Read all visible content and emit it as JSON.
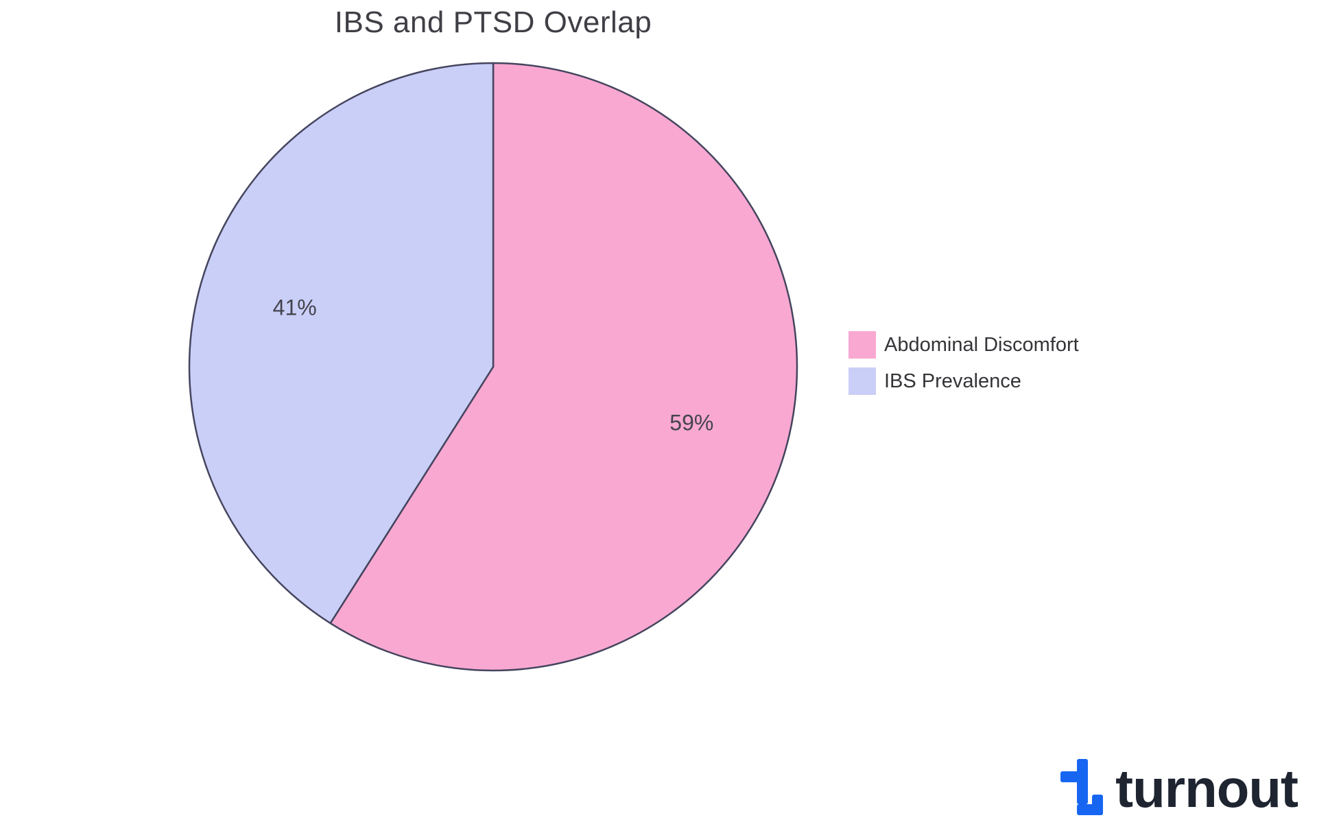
{
  "page": {
    "background": "#ffffff"
  },
  "chart_data": {
    "type": "pie",
    "title": "IBS and PTSD Overlap",
    "slices": [
      {
        "label": "Abdominal Discomfort",
        "value": 59,
        "pct_label": "59%",
        "color": "#F9A8D2"
      },
      {
        "label": "IBS Prevalence",
        "value": 41,
        "pct_label": "41%",
        "color": "#CACFF8"
      }
    ],
    "start_angle_deg": 0,
    "direction": "clockwise",
    "stroke_color": "#45455E",
    "stroke_width": 2.5,
    "label_radius_ratio": 0.68,
    "legend_position": "right",
    "legend_entries": [
      "Abdominal Discomfort",
      "IBS Prevalence"
    ]
  },
  "brand": {
    "name": "turnout",
    "logo_icon": "turnout-t-icon",
    "logo_color": "#1766F2",
    "text_color": "#1e2430"
  }
}
